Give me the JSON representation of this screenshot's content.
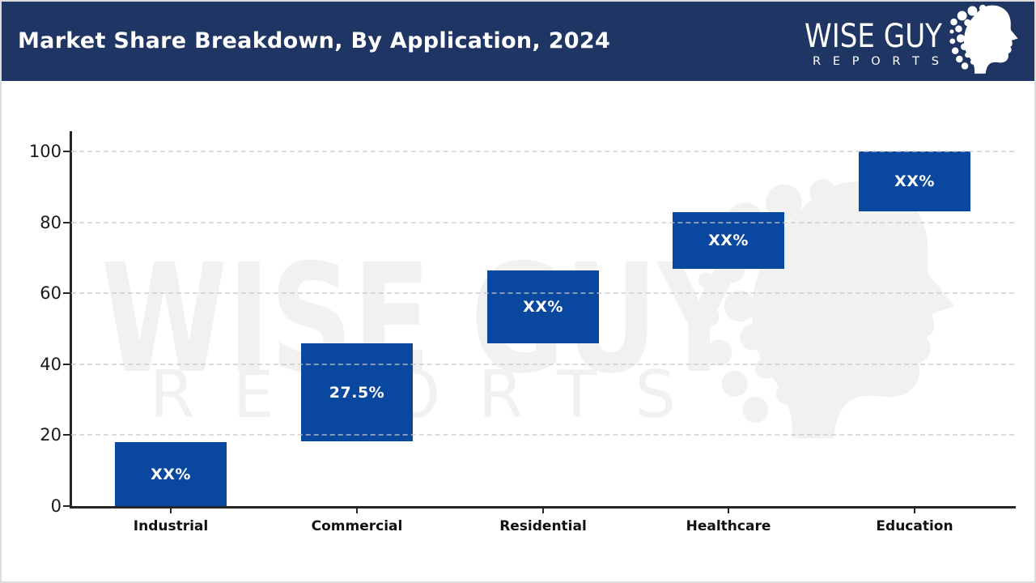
{
  "header": {
    "title": "Market Share Breakdown, By Application, 2024",
    "logo": {
      "line1": "WISE GUY",
      "line2": "R E P O R T S"
    }
  },
  "watermark": {
    "line1": "WISE GUY",
    "line2": "REPORTS"
  },
  "chart_data": {
    "type": "bar",
    "variant": "floating-waterfall",
    "title": "Market Share Breakdown, By Application, 2024",
    "categories": [
      "Industrial",
      "Commercial",
      "Residential",
      "Healthcare",
      "Education"
    ],
    "segments": [
      {
        "category": "Industrial",
        "start": 0,
        "end": 18,
        "label": "XX%"
      },
      {
        "category": "Commercial",
        "start": 18.3,
        "end": 45.8,
        "label": "27.5%"
      },
      {
        "category": "Residential",
        "start": 46,
        "end": 66.5,
        "label": "XX%"
      },
      {
        "category": "Healthcare",
        "start": 67,
        "end": 82.8,
        "label": "XX%"
      },
      {
        "category": "Education",
        "start": 83,
        "end": 100,
        "label": "XX%"
      }
    ],
    "xlabel": "",
    "ylabel": "",
    "ylim": [
      0,
      100
    ],
    "yticks": [
      0,
      20,
      40,
      60,
      80,
      100
    ],
    "grid": "horizontal-dashed",
    "legend": "none",
    "bar_color": "#0a479e",
    "bar_label_color": "#ffffff"
  },
  "colors": {
    "header_bg": "#1f3563",
    "bar": "#0a479e",
    "grid": "#d9d9d9",
    "axis": "#262626",
    "watermark": "#f1f1f1",
    "border": "#dcdcdc"
  }
}
